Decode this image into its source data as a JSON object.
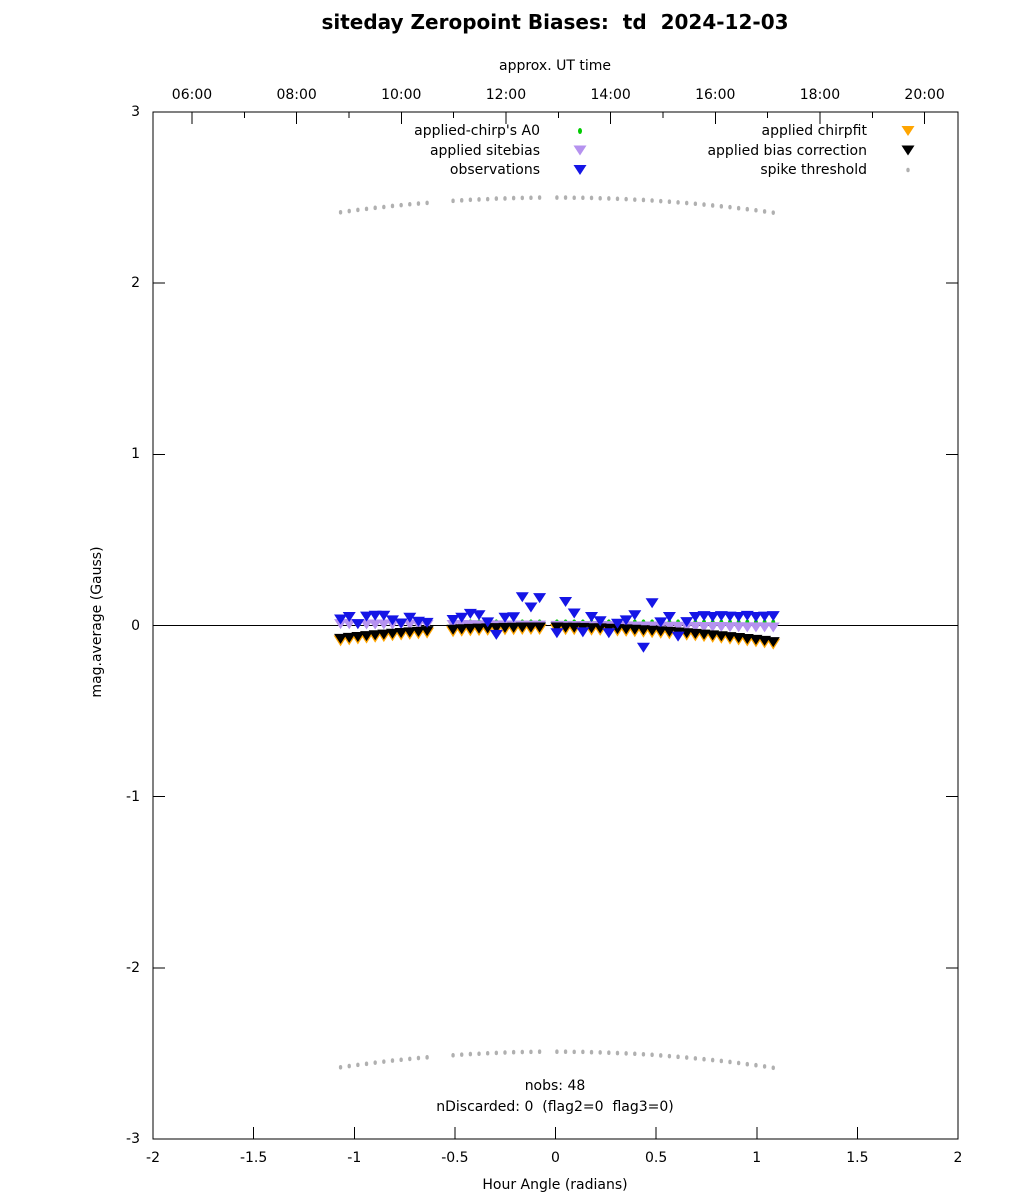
{
  "chart_data": {
    "type": "scatter",
    "title": "siteday Zeropoint Biases:  td  2024-12-03",
    "top_axis": {
      "label": "approx. UT time",
      "tick_labels": [
        "06:00",
        "08:00",
        "10:00",
        "12:00",
        "14:00",
        "16:00",
        "18:00",
        "20:00"
      ],
      "tick_hours": [
        6,
        8,
        10,
        12,
        14,
        16,
        18,
        20
      ],
      "minor_tick_hours": [
        7,
        9,
        11,
        13,
        15,
        17,
        19
      ]
    },
    "x_axis": {
      "label": "Hour Angle (radians)",
      "range": [
        -2,
        2
      ],
      "ticks": [
        -2,
        -1.5,
        -1,
        -0.5,
        0,
        0.5,
        1,
        1.5,
        2
      ],
      "tick_labels": [
        "-2",
        "-1.5",
        "-1",
        "-0.5",
        "0",
        "0.5",
        "1",
        "1.5",
        "2"
      ]
    },
    "y_axis": {
      "label": "mag.average (Gauss)",
      "range": [
        -3,
        3
      ],
      "ticks": [
        3,
        2,
        1,
        0,
        -1,
        -2,
        -3
      ],
      "tick_labels": [
        "3",
        "2",
        "1",
        "0",
        "-1",
        "-2",
        "-3"
      ]
    },
    "zero_line": true,
    "grid": false,
    "legend": {
      "position": "top-inside-two-columns",
      "left": [
        {
          "label": "applied-chirp's A0",
          "marker": "dot",
          "color": "#00cc00"
        },
        {
          "label": "applied sitebias",
          "marker": "triangle-down",
          "color": "#b592ef"
        },
        {
          "label": "observations",
          "marker": "triangle-down",
          "color": "#1515e6"
        }
      ],
      "right": [
        {
          "label": "applied chirpfit",
          "marker": "triangle-down",
          "color": "#ffa500"
        },
        {
          "label": "applied bias correction",
          "marker": "triangle-down",
          "color": "#000000"
        },
        {
          "label": "spike threshold",
          "marker": "dot",
          "color": "#b0b0b0"
        }
      ]
    },
    "annotations": [
      "nobs: 48",
      "nDiscarded: 0  (flag2=0  flag3=0)"
    ],
    "nobs": 48,
    "x": [
      -1.068,
      -1.025,
      -0.982,
      -0.939,
      -0.896,
      -0.853,
      -0.81,
      -0.767,
      -0.724,
      -0.681,
      -0.638,
      -0.509,
      -0.466,
      -0.423,
      -0.38,
      -0.337,
      -0.294,
      -0.251,
      -0.208,
      -0.165,
      -0.122,
      -0.079,
      0.007,
      0.05,
      0.093,
      0.136,
      0.179,
      0.222,
      0.265,
      0.308,
      0.351,
      0.394,
      0.437,
      0.48,
      0.523,
      0.566,
      0.609,
      0.652,
      0.695,
      0.738,
      0.781,
      0.824,
      0.867,
      0.91,
      0.953,
      0.996,
      1.039,
      1.082
    ],
    "series": [
      {
        "name": "applied-chirp's A0",
        "marker": "dot",
        "color": "#00cc00",
        "y_constant": 0.018
      },
      {
        "name": "applied sitebias",
        "marker": "triangle-down",
        "color": "#b592ef",
        "y": [
          0.008,
          0.007,
          0.007,
          0.006,
          0.006,
          0.006,
          0.005,
          0.005,
          0.005,
          0.004,
          0.004,
          0.003,
          0.002,
          0.002,
          0.001,
          0.001,
          0.001,
          0,
          0,
          0,
          -0.001,
          -0.001,
          -0.002,
          -0.002,
          -0.003,
          -0.003,
          -0.004,
          -0.004,
          -0.004,
          -0.005,
          -0.005,
          -0.006,
          -0.006,
          -0.006,
          -0.007,
          -0.007,
          -0.007,
          -0.008,
          -0.008,
          -0.009,
          -0.009,
          -0.009,
          -0.01,
          -0.01,
          -0.011,
          -0.011,
          -0.011,
          -0.012
        ]
      },
      {
        "name": "applied chirpfit",
        "marker": "triangle-down",
        "color": "#ffa500",
        "y": [
          -0.078,
          -0.072,
          -0.067,
          -0.062,
          -0.057,
          -0.053,
          -0.048,
          -0.044,
          -0.04,
          -0.037,
          -0.033,
          -0.025,
          -0.022,
          -0.02,
          -0.018,
          -0.017,
          -0.015,
          -0.014,
          -0.013,
          -0.012,
          -0.012,
          -0.012,
          -0.012,
          -0.013,
          -0.013,
          -0.014,
          -0.016,
          -0.017,
          -0.019,
          -0.021,
          -0.023,
          -0.025,
          -0.028,
          -0.031,
          -0.034,
          -0.037,
          -0.041,
          -0.045,
          -0.049,
          -0.053,
          -0.058,
          -0.063,
          -0.068,
          -0.073,
          -0.079,
          -0.084,
          -0.09,
          -0.097
        ]
      },
      {
        "name": "applied bias correction",
        "marker": "triangle-down",
        "color": "#000000",
        "y": [
          -0.078,
          -0.072,
          -0.067,
          -0.062,
          -0.057,
          -0.053,
          -0.048,
          -0.044,
          -0.04,
          -0.037,
          -0.033,
          -0.025,
          -0.022,
          -0.02,
          -0.018,
          -0.017,
          -0.015,
          -0.014,
          -0.013,
          -0.012,
          -0.012,
          -0.012,
          -0.012,
          -0.013,
          -0.013,
          -0.014,
          -0.016,
          -0.017,
          -0.019,
          -0.021,
          -0.023,
          -0.025,
          -0.028,
          -0.031,
          -0.034,
          -0.037,
          -0.041,
          -0.045,
          -0.049,
          -0.053,
          -0.058,
          -0.063,
          -0.068,
          -0.073,
          -0.079,
          -0.084,
          -0.09,
          -0.097
        ]
      },
      {
        "name": "observations",
        "marker": "triangle-down",
        "color": "#1515e6",
        "y": [
          0.035,
          0.05,
          0.008,
          0.052,
          0.057,
          0.057,
          0.03,
          0.012,
          0.045,
          0.022,
          0.015,
          0.032,
          0.045,
          0.068,
          0.06,
          0.018,
          -0.055,
          0.045,
          0.048,
          0.165,
          0.105,
          0.16,
          -0.045,
          0.137,
          0.07,
          -0.04,
          0.05,
          0.025,
          -0.045,
          0.01,
          0.03,
          0.06,
          -0.13,
          0.13,
          0.018,
          0.05,
          -0.065,
          0.02,
          0.05,
          0.055,
          0.05,
          0.055,
          0.052,
          0.05,
          0.056,
          0.05,
          0.052,
          0.055
        ]
      },
      {
        "name": "spike threshold",
        "marker": "dot",
        "color": "#b0b0b0",
        "y_upper": [
          2.414,
          2.421,
          2.428,
          2.434,
          2.44,
          2.445,
          2.451,
          2.456,
          2.461,
          2.465,
          2.469,
          2.481,
          2.484,
          2.487,
          2.489,
          2.491,
          2.494,
          2.495,
          2.497,
          2.498,
          2.499,
          2.5,
          2.5,
          2.5,
          2.499,
          2.499,
          2.498,
          2.496,
          2.495,
          2.493,
          2.491,
          2.488,
          2.486,
          2.483,
          2.479,
          2.476,
          2.472,
          2.468,
          2.464,
          2.459,
          2.454,
          2.449,
          2.444,
          2.438,
          2.432,
          2.426,
          2.419,
          2.412
        ],
        "y_lower": [
          -2.581,
          -2.574,
          -2.567,
          -2.561,
          -2.554,
          -2.548,
          -2.542,
          -2.537,
          -2.532,
          -2.527,
          -2.523,
          -2.511,
          -2.507,
          -2.504,
          -2.502,
          -2.499,
          -2.497,
          -2.495,
          -2.493,
          -2.492,
          -2.491,
          -2.49,
          -2.49,
          -2.49,
          -2.491,
          -2.491,
          -2.493,
          -2.494,
          -2.496,
          -2.498,
          -2.5,
          -2.502,
          -2.505,
          -2.508,
          -2.512,
          -2.516,
          -2.52,
          -2.524,
          -2.529,
          -2.534,
          -2.539,
          -2.544,
          -2.55,
          -2.556,
          -2.563,
          -2.569,
          -2.576,
          -2.584
        ]
      }
    ]
  }
}
